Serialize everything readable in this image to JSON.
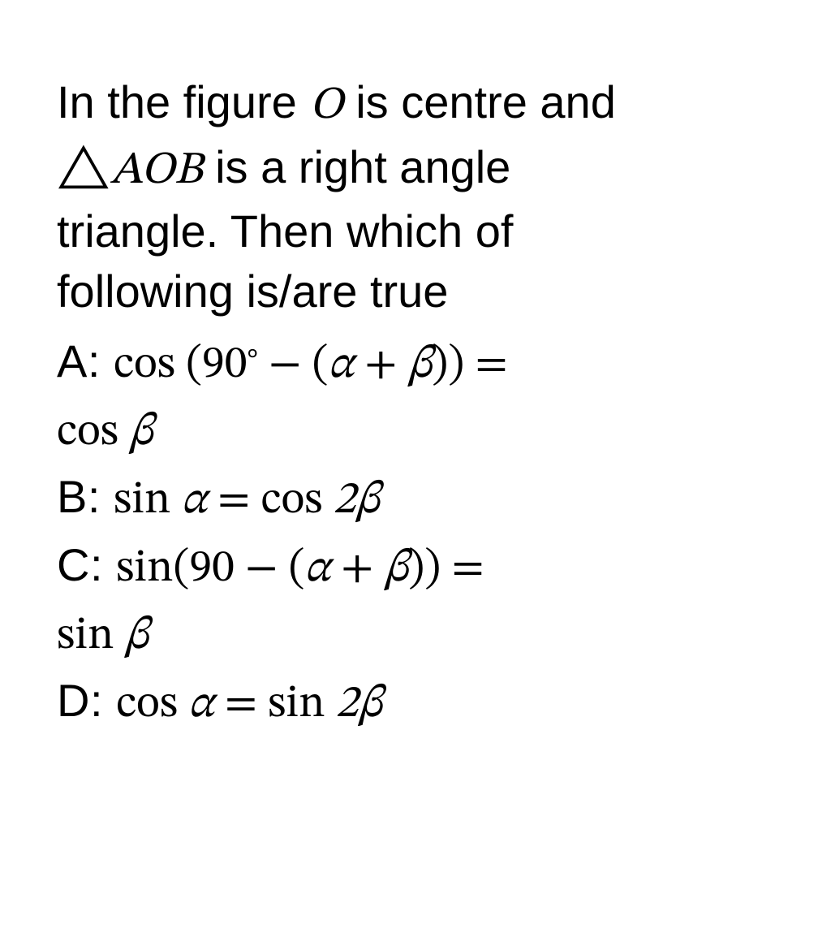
{
  "stem": {
    "line1_pre": "In the figure ",
    "line1_var": "O",
    "line1_post": " is centre and",
    "line2_tri": "△",
    "line2_name": "AOB",
    "line2_post": " is a right angle",
    "line3": "triangle. Then which of",
    "line4": "following is/are true"
  },
  "options": {
    "A": {
      "label": "A: ",
      "expr_l": "cos (90",
      "deg": "∘",
      "expr_mid": " − (",
      "alpha": "α",
      "plus": " + ",
      "beta": "β",
      "expr_r": ")) =",
      "rhs_fn": "cos ",
      "rhs_var": "β"
    },
    "B": {
      "label": "B: ",
      "lhs_fn": "sin ",
      "lhs_var": "α",
      "eq": " = ",
      "rhs_fn": "cos ",
      "rhs_var": "2β"
    },
    "C": {
      "label": "C: ",
      "expr_l": "sin(90 − (",
      "alpha": "α",
      "plus": " + ",
      "beta": "β",
      "expr_r": ")) =",
      "rhs_fn": "sin ",
      "rhs_var": "β"
    },
    "D": {
      "label": "D: ",
      "lhs_fn": "cos ",
      "lhs_var": "α",
      "eq": " = ",
      "rhs_fn": "sin ",
      "rhs_var": "2β"
    }
  }
}
